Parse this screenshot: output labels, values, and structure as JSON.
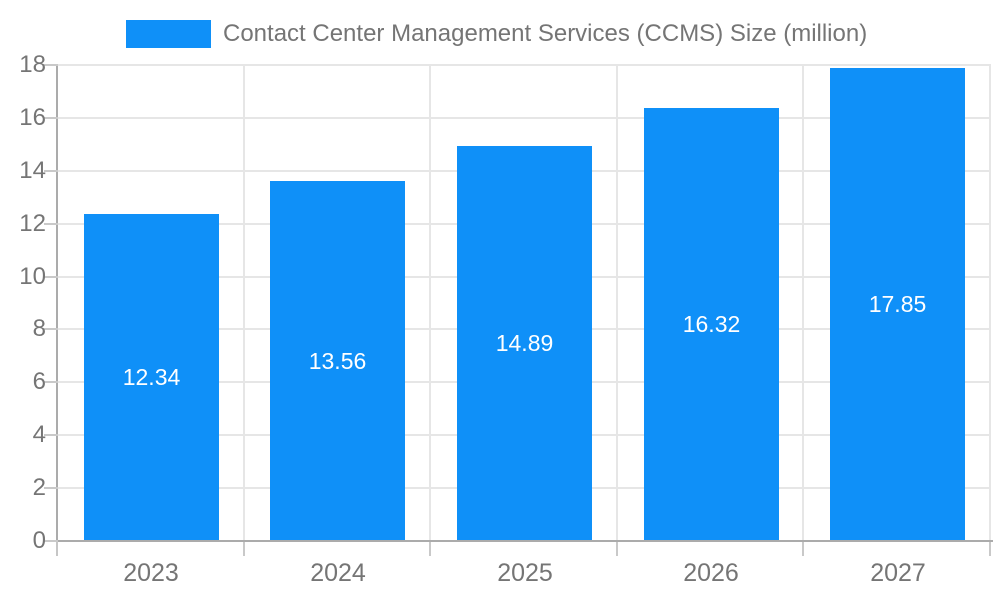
{
  "legend": {
    "label": "Contact Center Management Services (CCMS) Size (million)"
  },
  "colors": {
    "bar": "#0f90f8",
    "axis_line": "#ababab",
    "gridline": "#e6e6e6",
    "tick": "#c9c9c9",
    "axis_text": "#757575",
    "value_text": "#ffffff",
    "background": "#ffffff"
  },
  "chart_data": {
    "type": "bar",
    "title": "Contact Center Management Services (CCMS) Size (million)",
    "categories": [
      "2023",
      "2024",
      "2025",
      "2026",
      "2027"
    ],
    "values": [
      12.34,
      13.56,
      14.89,
      16.32,
      17.85
    ],
    "value_labels": [
      "12.34",
      "13.56",
      "14.89",
      "16.32",
      "17.85"
    ],
    "ytick_labels": [
      "0",
      "2",
      "4",
      "6",
      "8",
      "10",
      "12",
      "14",
      "16",
      "18"
    ],
    "xlabel": "",
    "ylabel": "",
    "ylim": [
      0,
      18
    ],
    "ytick_step": 2,
    "grid": true,
    "legend_position": "top-left",
    "bar_label_position": "inside-center"
  }
}
